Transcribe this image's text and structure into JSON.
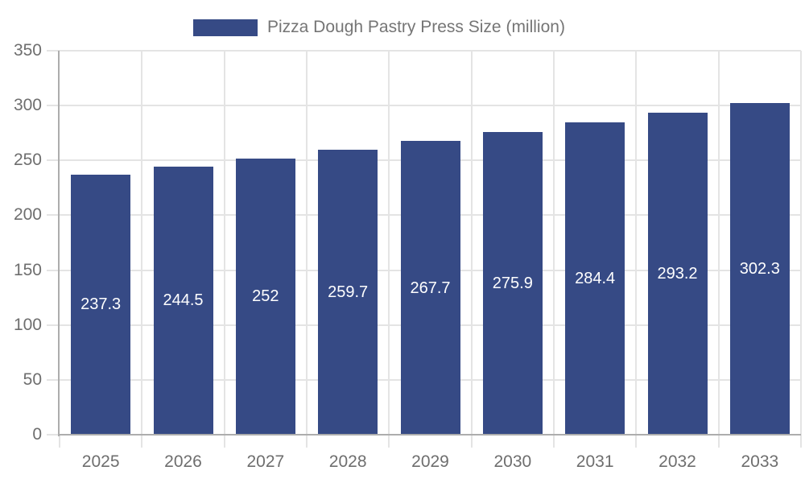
{
  "legend": {
    "label": "Pizza Dough Pastry Press Size (million)"
  },
  "colors": {
    "bar": "#364a85",
    "grid": "#e4e4e4",
    "axis": "#adadad",
    "tick_text": "#6e6e6e",
    "legend_text": "#757575",
    "value_label": "#ffffff",
    "background": "#ffffff"
  },
  "chart_data": {
    "type": "bar",
    "title": "Pizza Dough Pastry Press Size (million)",
    "series_name": "Pizza Dough Pastry Press Size (million)",
    "categories": [
      "2025",
      "2026",
      "2027",
      "2028",
      "2029",
      "2030",
      "2031",
      "2032",
      "2033"
    ],
    "values": [
      237.3,
      244.5,
      252,
      259.7,
      267.7,
      275.9,
      284.4,
      293.2,
      302.3
    ],
    "value_labels": [
      "237.3",
      "244.5",
      "252",
      "259.7",
      "267.7",
      "275.9",
      "284.4",
      "293.2",
      "302.3"
    ],
    "xlabel": "",
    "ylabel": "",
    "ylim": [
      0,
      350
    ],
    "y_ticks": [
      0,
      50,
      100,
      150,
      200,
      250,
      300,
      350
    ],
    "grid": true,
    "legend_position": "top-center",
    "value_label_position": "inside-middle"
  }
}
